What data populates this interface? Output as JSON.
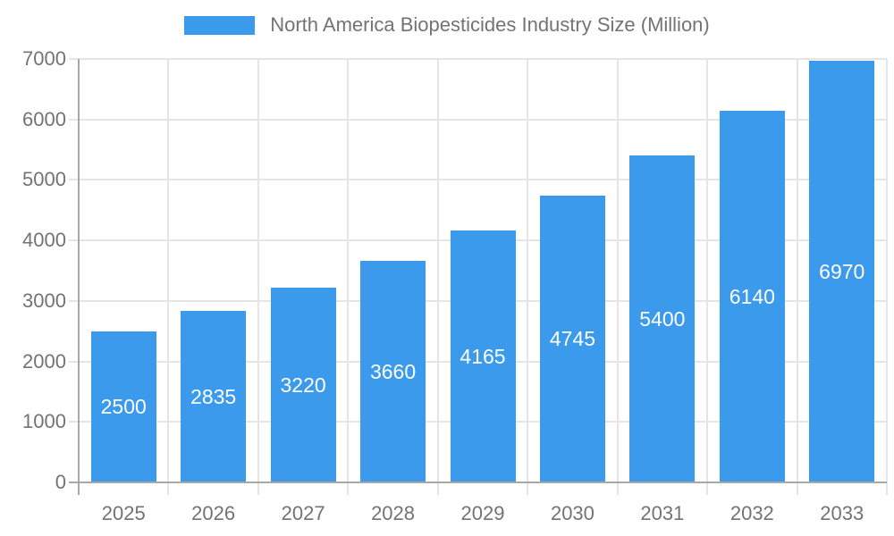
{
  "chart_data": {
    "type": "bar",
    "title": "North America Biopesticides Industry Size (Million)",
    "series": [
      {
        "name": "North America Biopesticides Industry Size (Million)",
        "values": [
          2500,
          2835,
          3220,
          3660,
          4165,
          4745,
          5400,
          6140,
          6970
        ]
      }
    ],
    "categories": [
      "2025",
      "2026",
      "2027",
      "2028",
      "2029",
      "2030",
      "2031",
      "2032",
      "2033"
    ],
    "values": [
      2500,
      2835,
      3220,
      3660,
      4165,
      4745,
      5400,
      6140,
      6970
    ],
    "xlabel": "",
    "ylabel": "",
    "ylim": [
      0,
      7000
    ],
    "yticks": [
      0,
      1000,
      2000,
      3000,
      4000,
      5000,
      6000,
      7000
    ],
    "grid": true,
    "legend_position": "top",
    "value_labels_inside_bars": true,
    "colors": {
      "bar": "#3B9AEC",
      "value_label": "#FFFFFF",
      "text": "#737373",
      "grid": "#E5E5E5",
      "axis_line": "#A8A8A8",
      "background": "#FFFFFF"
    }
  }
}
